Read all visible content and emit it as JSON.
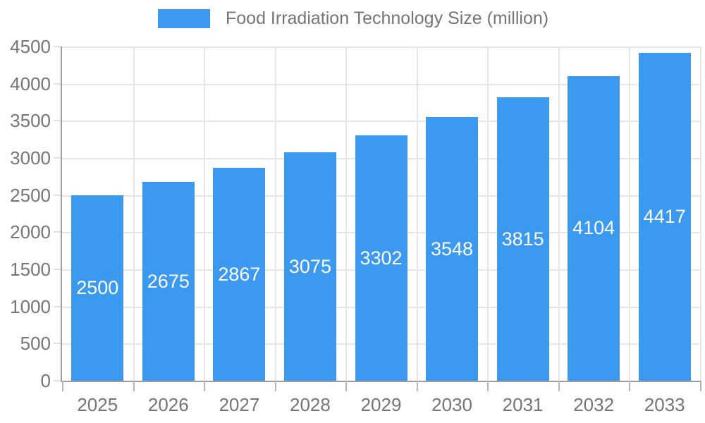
{
  "legend": {
    "label": "Food Irradiation Technology Size (million)"
  },
  "colors": {
    "bar": "#3b99f0",
    "grid": "#e6e6e6",
    "axis": "#9e9e9e",
    "tick_text": "#757575",
    "bar_label_text": "#ffffff",
    "background": "#ffffff"
  },
  "chart_data": {
    "type": "bar",
    "title": "Food Irradiation Technology Size (million)",
    "series_name": "Food Irradiation Technology Size (million)",
    "categories": [
      "2025",
      "2026",
      "2027",
      "2028",
      "2029",
      "2030",
      "2031",
      "2032",
      "2033"
    ],
    "values": [
      2500,
      2675,
      2867,
      3075,
      3302,
      3548,
      3815,
      4104,
      4417
    ],
    "bar_labels": [
      "2500",
      "2675",
      "2867",
      "3075",
      "3302",
      "3548",
      "3815",
      "4104",
      "4417"
    ],
    "xlabel": "",
    "ylabel": "",
    "ylim": [
      0,
      4500
    ],
    "ytick_step": 500,
    "yticks": [
      0,
      500,
      1000,
      1500,
      2000,
      2500,
      3000,
      3500,
      4000,
      4500
    ],
    "grid": true,
    "legend_position": "top-center",
    "bar_label_position": "center"
  }
}
